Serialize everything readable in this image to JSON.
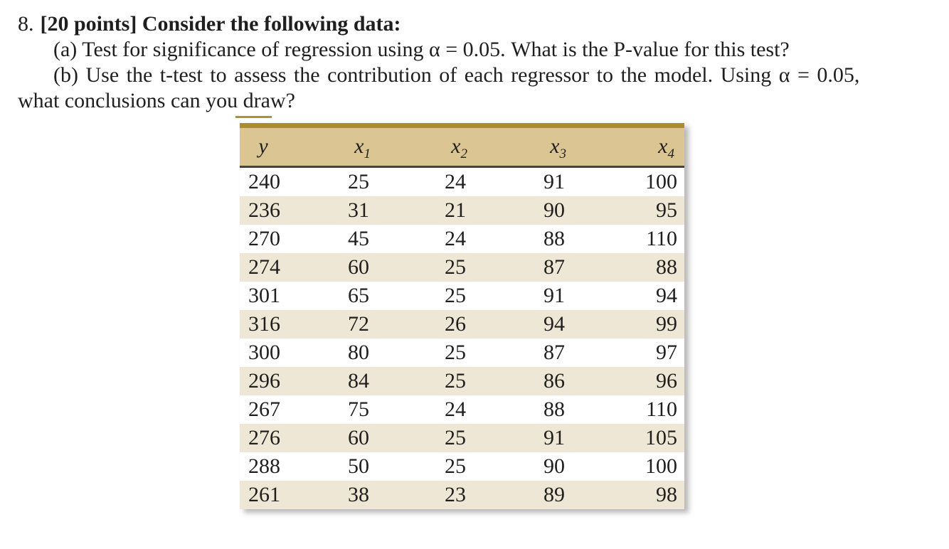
{
  "question": {
    "number": "8.",
    "heading": "[20 points] Consider the following data:",
    "part_a": "(a) Test for significance of regression using α = 0.05. What is the P-value for this test?",
    "part_b_line1": "(b) Use the t-test to assess the contribution of each regressor to the model. Using α = 0.05,",
    "part_b_line2": "what conclusions can you draw?"
  },
  "data_table": {
    "columns": [
      {
        "base": "y",
        "sub": ""
      },
      {
        "base": "x",
        "sub": "1"
      },
      {
        "base": "x",
        "sub": "2"
      },
      {
        "base": "x",
        "sub": "3"
      },
      {
        "base": "x",
        "sub": "4"
      }
    ],
    "rows": [
      [
        240,
        25,
        24,
        91,
        100
      ],
      [
        236,
        31,
        21,
        90,
        95
      ],
      [
        270,
        45,
        24,
        88,
        110
      ],
      [
        274,
        60,
        25,
        87,
        88
      ],
      [
        301,
        65,
        25,
        91,
        94
      ],
      [
        316,
        72,
        26,
        94,
        99
      ],
      [
        300,
        80,
        25,
        87,
        97
      ],
      [
        296,
        84,
        25,
        86,
        96
      ],
      [
        267,
        75,
        24,
        88,
        110
      ],
      [
        276,
        60,
        25,
        91,
        105
      ],
      [
        288,
        50,
        25,
        90,
        100
      ],
      [
        261,
        38,
        23,
        89,
        98
      ]
    ]
  },
  "colors": {
    "table_top_bar": "#ab8c2e",
    "table_header_bg": "#dbc593",
    "row_stripe": "#efe7d6",
    "row_plain": "#ffffff",
    "header_rule": "#46433c",
    "underline_accent": "#b2922f",
    "text": "#1f1f1f"
  }
}
